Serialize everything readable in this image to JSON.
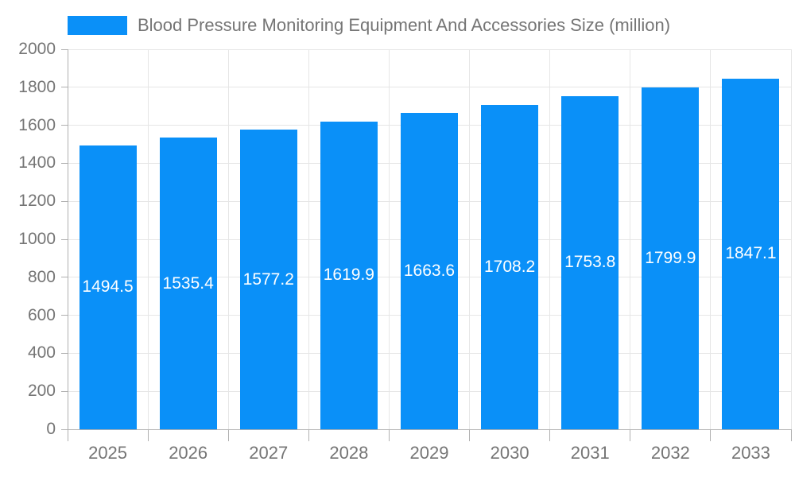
{
  "chart_data": {
    "type": "bar",
    "title": "Blood Pressure Monitoring Equipment And Accessories Size (million)",
    "categories": [
      "2025",
      "2026",
      "2027",
      "2028",
      "2029",
      "2030",
      "2031",
      "2032",
      "2033"
    ],
    "values": [
      1494.5,
      1535.4,
      1577.2,
      1619.9,
      1663.6,
      1708.2,
      1753.8,
      1799.9,
      1847.1
    ],
    "xlabel": "",
    "ylabel": "",
    "ylim": [
      0,
      2000
    ],
    "ytick_step": 200,
    "ytick_labels": [
      "0",
      "200",
      "400",
      "600",
      "800",
      "1000",
      "1200",
      "1400",
      "1600",
      "1800",
      "2000"
    ],
    "legend_position": "top",
    "grid": true,
    "colors": {
      "bar": "#0a90f8",
      "value_label": "#ffffff",
      "axis_label": "#757575",
      "grid_line": "#e6e6e6",
      "axis_line": "#b0b0b0",
      "background": "#ffffff"
    }
  }
}
